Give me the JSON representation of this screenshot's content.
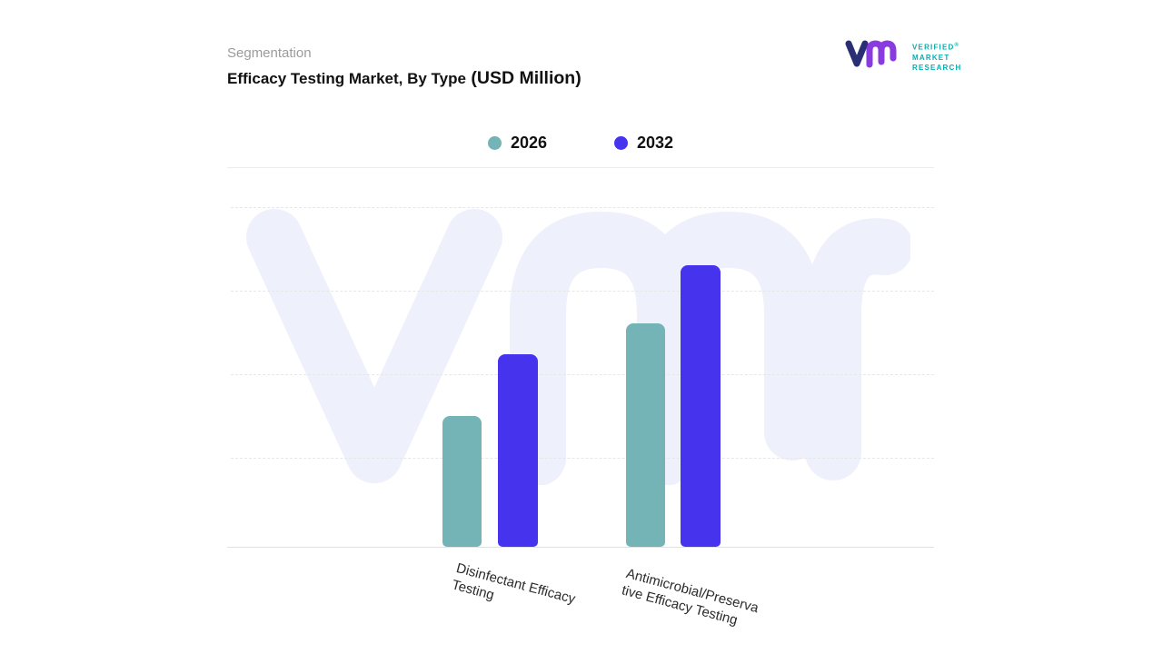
{
  "header": {
    "eyebrow": "Segmentation",
    "title_main": "Efficacy Testing Market, By Type",
    "title_suffix": " (USD Million)"
  },
  "brand": {
    "line1": "VERIFIED",
    "line2": "MARKET",
    "line3": "RESEARCH",
    "reg_mark": "®",
    "text_color": "#00b1b0"
  },
  "chart_data": {
    "type": "bar",
    "title": "Efficacy Testing Market, By Type (USD Million)",
    "categories": [
      "Disinfectant Efficacy Testing",
      "Antimicrobial/Preserva tive Efficacy Testing"
    ],
    "series": [
      {
        "name": "2026",
        "color": "#74b4b7",
        "values": [
          38,
          65
        ]
      },
      {
        "name": "2032",
        "color": "#4633ee",
        "values": [
          56,
          82
        ]
      }
    ],
    "xlabel": "",
    "ylabel": "",
    "ylim": [
      0,
      100
    ],
    "value_axis_labels_visible": false,
    "grid": "dashed-horizontal",
    "legend_position": "top-center",
    "note": "No numeric axis labels shown; values estimated in relative units from bar heights"
  }
}
